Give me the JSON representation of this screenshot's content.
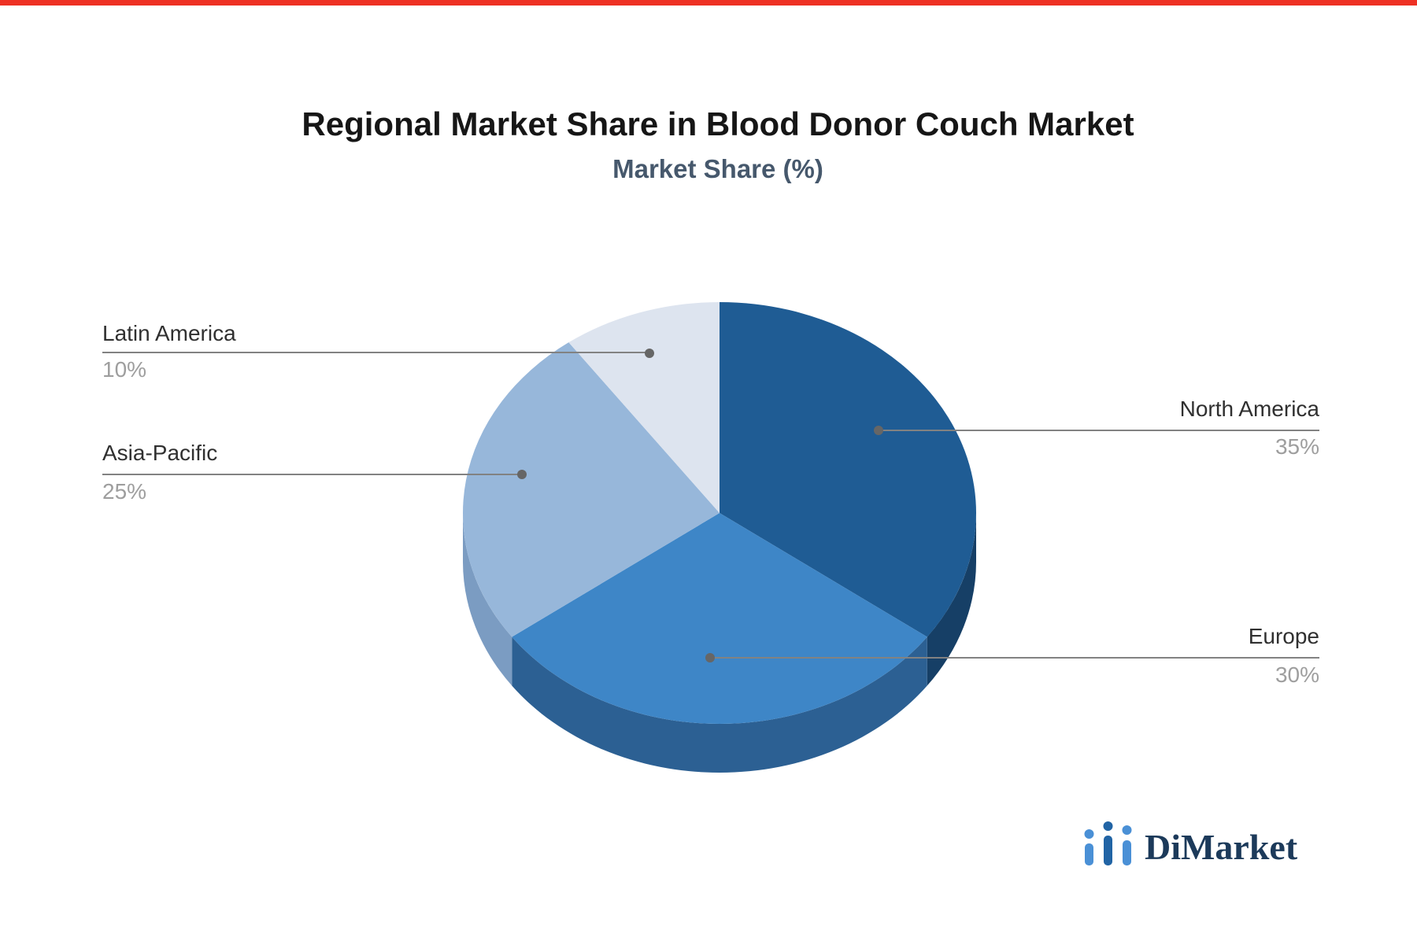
{
  "chart_data": {
    "type": "pie",
    "style": "pie3d",
    "title": "Regional Market Share in Blood Donor Couch Market",
    "subtitle": "Market Share (%)",
    "unit": "percent",
    "start_angle_deg": 0,
    "direction": "clockwise",
    "legend_position": "connector-labels",
    "slices": [
      {
        "label": "North America",
        "value": 35,
        "pct_label": "35%",
        "color": "#1f5c94",
        "side_color": "#163f66"
      },
      {
        "label": "Europe",
        "value": 30,
        "pct_label": "30%",
        "color": "#3e86c7",
        "side_color": "#2c6093"
      },
      {
        "label": "Asia-Pacific",
        "value": 25,
        "pct_label": "25%",
        "color": "#97b7da",
        "side_color": "#7b9cc2"
      },
      {
        "label": "Latin America",
        "value": 10,
        "pct_label": "10%",
        "color": "#dde4ef",
        "side_color": "#c3cedd"
      }
    ],
    "connector_line_color": "#828282",
    "connector_dot_color": "#666666"
  },
  "branding": {
    "logo_text": "DiMarket",
    "logo_icon": "bar-chart-icon"
  },
  "decor": {
    "top_bar_color": "#ee3124"
  }
}
